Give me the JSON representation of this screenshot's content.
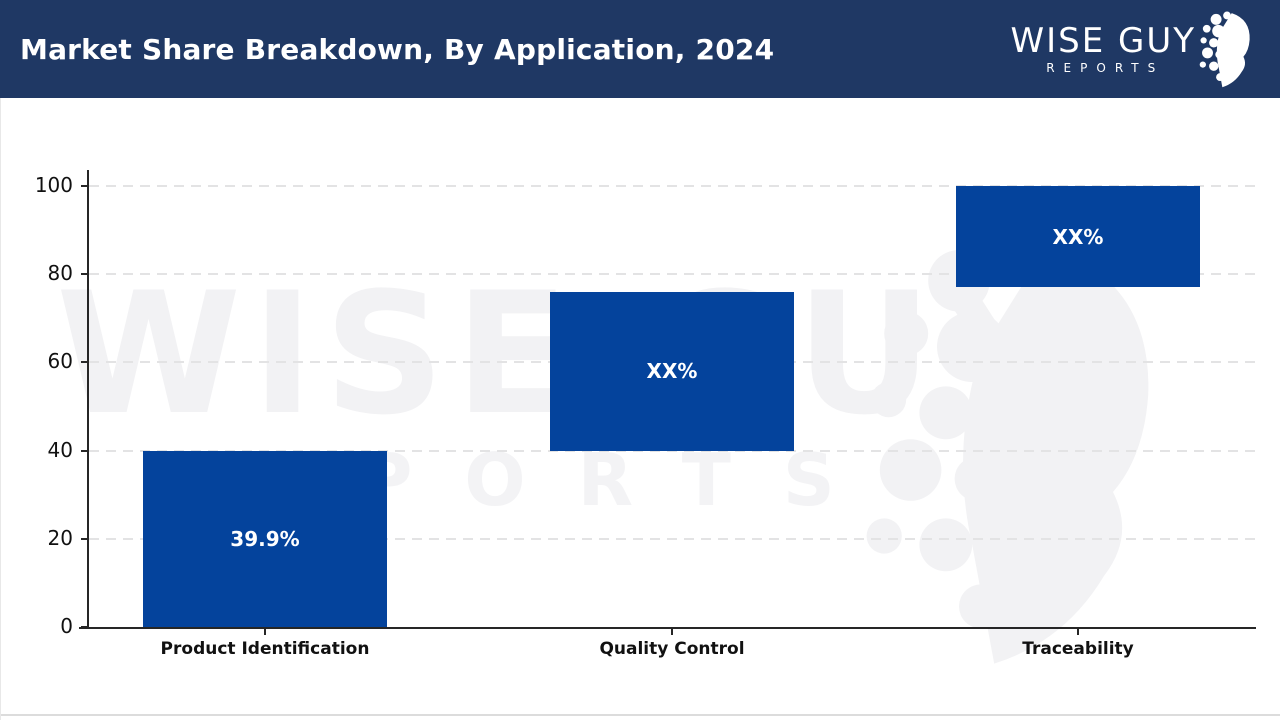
{
  "header": {
    "title": "Market Share Breakdown, By Application, 2024",
    "bg_color": "#1f3864",
    "logo": {
      "line1": "WISE GUY",
      "line2": "REPORTS"
    }
  },
  "watermark": {
    "line1": "WISE GUY",
    "line2": "REPORTS"
  },
  "chart_data": {
    "type": "bar",
    "subtype": "floating-waterfall",
    "title": "Market Share Breakdown, By Application, 2024",
    "categories": [
      "Product Identification",
      "Quality Control",
      "Traceability"
    ],
    "bars": [
      {
        "category": "Product Identification",
        "start": 0,
        "end": 39.9,
        "label": "39.9%"
      },
      {
        "category": "Quality Control",
        "start": 40,
        "end": 76,
        "label": "XX%"
      },
      {
        "category": "Traceability",
        "start": 77,
        "end": 100,
        "label": "XX%"
      }
    ],
    "y_ticks": [
      0,
      20,
      40,
      60,
      80,
      100
    ],
    "ylim": [
      0,
      100
    ],
    "xlabel": "",
    "ylabel": "",
    "bar_color": "#04439c",
    "grid": "horizontal-dashed",
    "legend": "none"
  }
}
